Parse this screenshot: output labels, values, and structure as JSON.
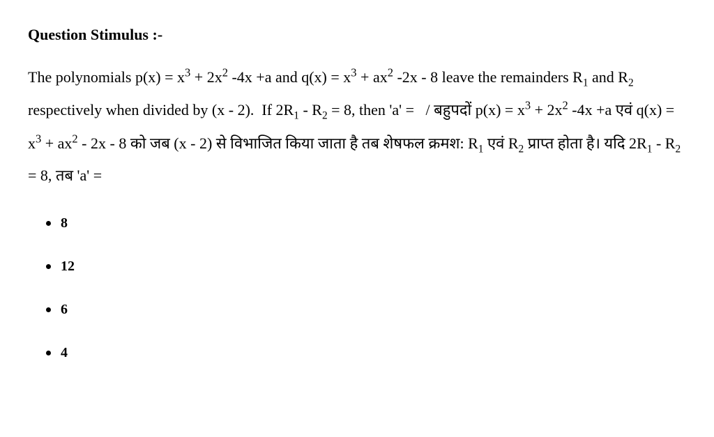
{
  "title": "Question Stimulus :-",
  "passage": "The polynomials p(x) = x³ + 2x² -4x +a and q(x) = x³ + ax² -2x - 8 leave the remainders R₁ and R₂ respectively when divided by (x - 2).  If 2R₁ - R₂ = 8, then 'a' =   / बहुपदों p(x) = x³ + 2x² -4x +a एवं q(x) = x³ + ax² - 2x - 8 को जब (x - 2) से विभाजित किया जाता है तब शेषफल क्रमश: R₁ एवं R₂ प्राप्त होता है। यदि 2R₁ - R₂ = 8, तब 'a' =",
  "options": [
    {
      "label": "8"
    },
    {
      "label": "12"
    },
    {
      "label": "6"
    },
    {
      "label": "4"
    }
  ],
  "colors": {
    "background": "#ffffff",
    "text": "#000000"
  },
  "typography": {
    "font_family": "Times New Roman",
    "title_fontsize": 22,
    "title_fontweight": "bold",
    "body_fontsize": 22,
    "option_fontsize": 20,
    "option_fontweight": "bold",
    "line_height": 2.0
  }
}
